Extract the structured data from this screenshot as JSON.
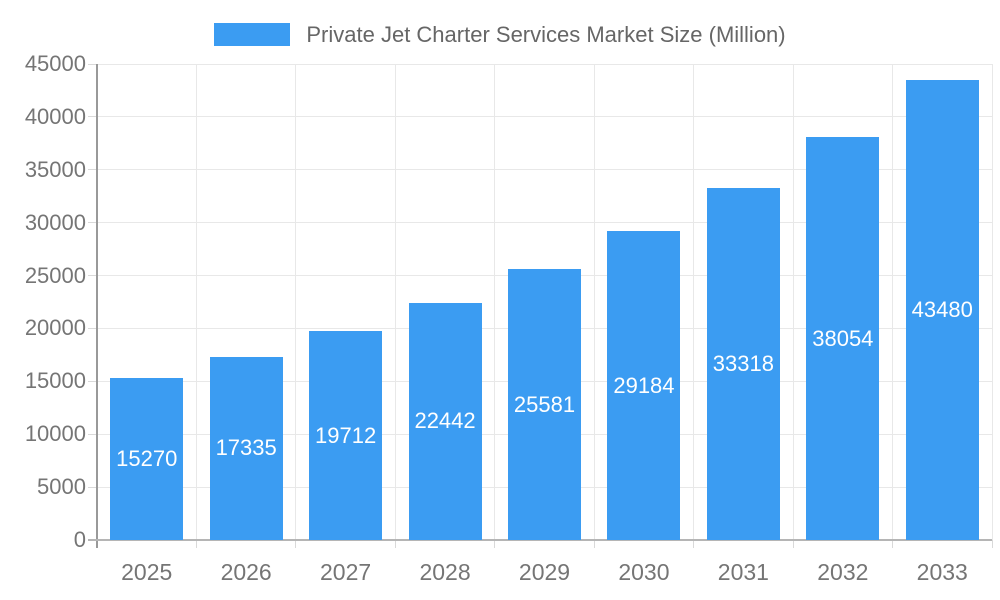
{
  "legend": {
    "label": "Private Jet Charter Services Market Size (Million)"
  },
  "chart_data": {
    "type": "bar",
    "title": "Private Jet Charter Services Market Size (Million)",
    "categories": [
      "2025",
      "2026",
      "2027",
      "2028",
      "2029",
      "2030",
      "2031",
      "2032",
      "2033"
    ],
    "values": [
      15270,
      17335,
      19712,
      22442,
      25581,
      29184,
      33318,
      38054,
      43480
    ],
    "xlabel": "",
    "ylabel": "",
    "ylim": [
      0,
      45000
    ],
    "yticks": [
      0,
      5000,
      10000,
      15000,
      20000,
      25000,
      30000,
      35000,
      40000,
      45000
    ],
    "grid": true,
    "legend_position": "top",
    "value_labels": "inside-center",
    "colors": {
      "bar": "#3B9CF2",
      "value_label": "#FFFFFF",
      "axis_text": "#757575",
      "legend_text": "#666666",
      "gridline": "#E8E8E8",
      "tick": "#D9D9D9",
      "y_axis_line": "#999999",
      "x_axis_line": "#B5B5B5",
      "background": "#FFFFFF"
    }
  }
}
